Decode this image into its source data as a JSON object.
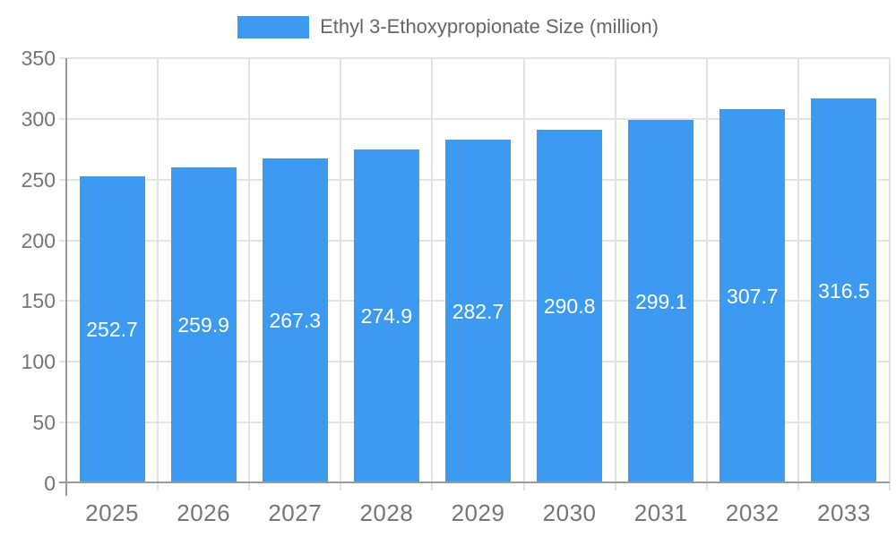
{
  "chart_data": {
    "type": "bar",
    "title": "Ethyl 3-Ethoxypropionate Size (million)",
    "categories": [
      "2025",
      "2026",
      "2027",
      "2028",
      "2029",
      "2030",
      "2031",
      "2032",
      "2033"
    ],
    "values": [
      252.7,
      259.9,
      267.3,
      274.9,
      282.7,
      290.8,
      299.1,
      307.7,
      316.5
    ],
    "series_name": "Ethyl 3-Ethoxypropionate Size (million)",
    "xlabel": "",
    "ylabel": "",
    "ylim": [
      0,
      350
    ],
    "yticks": [
      0,
      50,
      100,
      150,
      200,
      250,
      300,
      350
    ],
    "grid": true,
    "legend_position": "top-center",
    "value_label_position": "inside-center",
    "value_label_decimals": 1,
    "colors": {
      "bar": "#3c9af0",
      "grid": "#e3e3e3",
      "axis": "#9a9a9a",
      "tick_text": "#757575",
      "legend_text": "#666666",
      "value_text": "#ffffff",
      "background": "#ffffff"
    }
  }
}
